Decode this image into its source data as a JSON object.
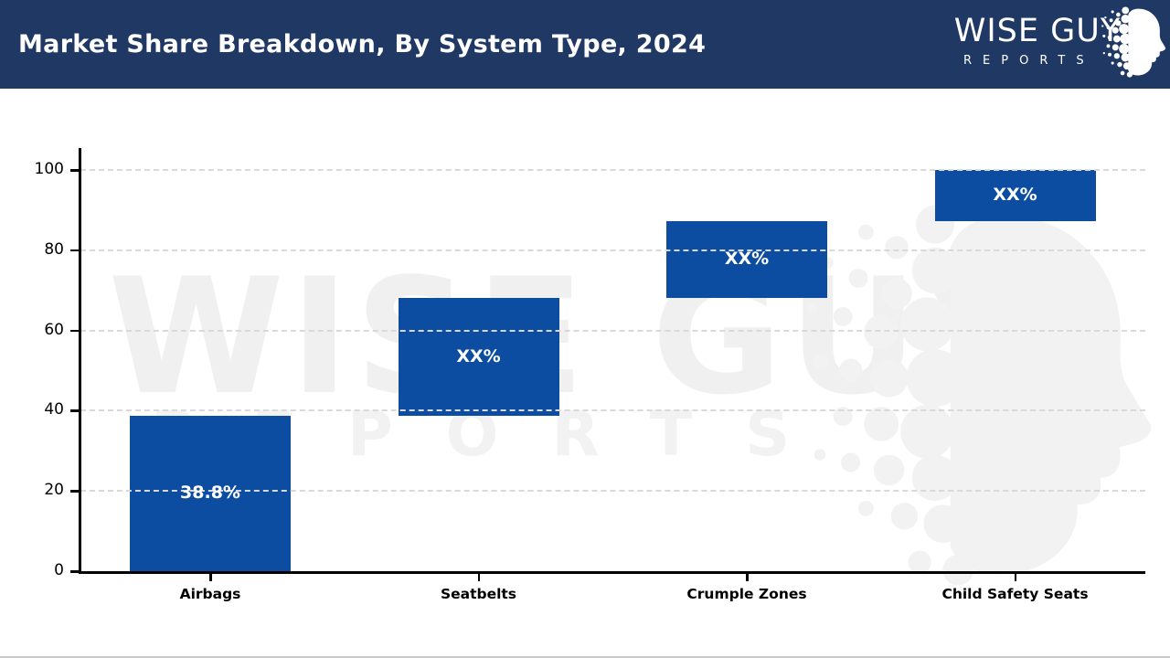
{
  "header": {
    "title": "Market Share Breakdown, By System Type, 2024",
    "logo_line1": "WISE GUY",
    "logo_line2": "REPORTS",
    "bg_color": "#1f3864"
  },
  "watermark": {
    "line1": "WISE GUY",
    "line2": "REPORTS"
  },
  "chart_data": {
    "type": "bar",
    "subtype": "waterfall",
    "title": "Market Share Breakdown, By System Type, 2024",
    "xlabel": "",
    "ylabel": "",
    "categories": [
      "Airbags",
      "Seatbelts",
      "Crumple Zones",
      "Child Safety Seats"
    ],
    "segments": [
      {
        "category": "Airbags",
        "start": 0,
        "end": 38.8,
        "label": "38.8%"
      },
      {
        "category": "Seatbelts",
        "start": 38.8,
        "end": 68.0,
        "label": "XX%"
      },
      {
        "category": "Crumple Zones",
        "start": 68.0,
        "end": 87.3,
        "label": "XX%"
      },
      {
        "category": "Child Safety Seats",
        "start": 87.3,
        "end": 100.0,
        "label": "XX%"
      }
    ],
    "yticks": [
      0,
      20,
      40,
      60,
      80,
      100
    ],
    "ylim": [
      0,
      106
    ],
    "grid": "horizontal dashed, drawn above bars",
    "legend": "none",
    "bar_color": "#0c4da2",
    "bar_label_color": "#ffffff",
    "gridline_color": "#d9d9d9",
    "axis_color": "#000000"
  }
}
